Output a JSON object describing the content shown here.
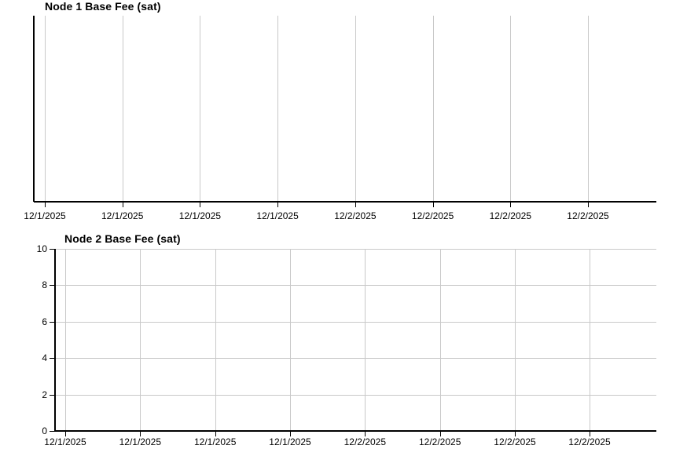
{
  "chart_data": [
    {
      "type": "line",
      "title": "Node 1 Base Fee (sat)",
      "x_tick_labels": [
        "12/1/2025",
        "12/1/2025",
        "12/1/2025",
        "12/1/2025",
        "12/2/2025",
        "12/2/2025",
        "12/2/2025",
        "12/2/2025"
      ],
      "y_tick_labels": [],
      "series": [],
      "xlabel": "",
      "ylabel": "",
      "grid": "vertical-only",
      "legend_position": "none"
    },
    {
      "type": "line",
      "title": "Node 2 Base Fee (sat)",
      "x_tick_labels": [
        "12/1/2025",
        "12/1/2025",
        "12/1/2025",
        "12/1/2025",
        "12/2/2025",
        "12/2/2025",
        "12/2/2025",
        "12/2/2025"
      ],
      "y_tick_labels": [
        "10",
        "8",
        "6",
        "4",
        "2",
        "0"
      ],
      "ylim": [
        0,
        10
      ],
      "series": [],
      "xlabel": "",
      "ylabel": "",
      "grid": "both",
      "legend_position": "none"
    }
  ],
  "colors": {
    "axis": "#000000",
    "gridline": "#c9c9c9",
    "text": "#000000",
    "background": "#ffffff"
  }
}
